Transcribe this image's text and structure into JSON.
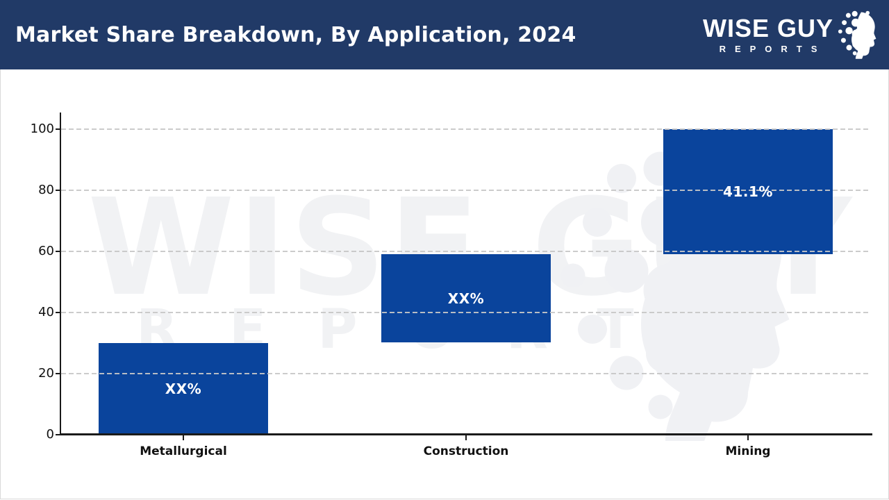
{
  "header": {
    "title": "Market Share Breakdown, By Application, 2024",
    "bg_color": "#213A67",
    "logo_line1": "WISE GUY",
    "logo_line2": "REPORTS"
  },
  "watermark": {
    "line1": "WISE GUY",
    "line2": "REPORTS"
  },
  "chart_data": {
    "type": "bar",
    "subtype": "floating-segment-breakdown",
    "title": "Market Share Breakdown, By Application, 2024",
    "categories": [
      "Metallurgical",
      "Construction",
      "Mining"
    ],
    "segments": [
      {
        "category": "Metallurgical",
        "start": 0,
        "end": 30,
        "label": "XX%"
      },
      {
        "category": "Construction",
        "start": 30,
        "end": 58.9,
        "label": "XX%"
      },
      {
        "category": "Mining",
        "start": 58.9,
        "end": 100,
        "label": "41.1%"
      }
    ],
    "y_ticks": [
      0,
      20,
      40,
      60,
      80,
      100
    ],
    "ylim": [
      0,
      105
    ],
    "xlabel": "",
    "ylabel": "",
    "grid": "horizontal-dashed",
    "legend": "none",
    "bar_color": "#0A449C",
    "bar_label_color": "#ffffff",
    "axis_color": "#1a1a1a"
  }
}
